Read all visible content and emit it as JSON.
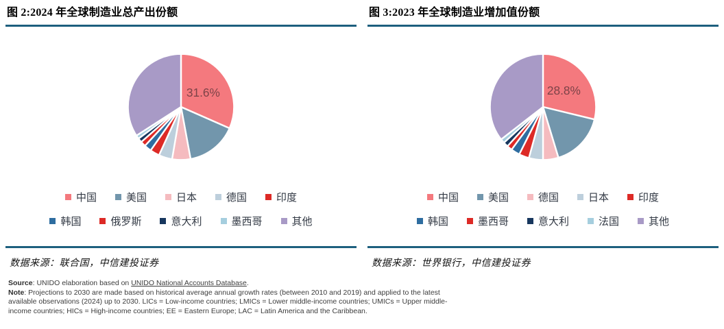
{
  "theme": {
    "rule_color": "#1d5f7e",
    "data_label_color": "#7d4348",
    "legend_text_color": "#333a45",
    "background": "#ffffff"
  },
  "chart_data": [
    {
      "type": "pie",
      "title": "图 2:2024 年全球制造业总产出份额",
      "source_note": "数据来源：联合国，中信建投证券",
      "data_label": {
        "text": "31.6%",
        "slice": "中国",
        "color": "#7d4348"
      },
      "legend_position": "bottom",
      "categories": [
        "中国",
        "美国",
        "日本",
        "德国",
        "印度",
        "韩国",
        "俄罗斯",
        "意大利",
        "墨西哥",
        "其他"
      ],
      "values": [
        31.6,
        15.5,
        5.6,
        4.1,
        2.9,
        2.2,
        1.6,
        1.3,
        1.1,
        34.1
      ],
      "colors": [
        "#f4797e",
        "#7296ac",
        "#f5bbbf",
        "#bdcfdc",
        "#dd2a26",
        "#2e6da0",
        "#dd2a26",
        "#17375e",
        "#a5cede",
        "#a89ac6"
      ]
    },
    {
      "type": "pie",
      "title": "图 3:2023 年全球制造业增加值份额",
      "source_note": "数据来源：世界银行，中信建投证券",
      "data_label": {
        "text": "28.8%",
        "slice": "中国",
        "color": "#7d4348"
      },
      "legend_position": "bottom",
      "categories": [
        "中国",
        "美国",
        "德国",
        "日本",
        "印度",
        "韩国",
        "墨西哥",
        "意大利",
        "法国",
        "其他"
      ],
      "values": [
        28.8,
        16.5,
        4.7,
        4.3,
        3.1,
        2.7,
        1.6,
        1.5,
        1.3,
        35.5
      ],
      "colors": [
        "#f4797e",
        "#7296ac",
        "#f5bbbf",
        "#bdcfdc",
        "#dd2a26",
        "#2e6da0",
        "#dd2a26",
        "#17375e",
        "#a5cede",
        "#a89ac6"
      ]
    }
  ],
  "footnote": {
    "source_label": "Source",
    "source_text": ": UNIDO elaboration based on ",
    "source_link": "UNIDO National Accounts Database",
    "source_tail": ".",
    "note_label": "Note",
    "note_text": ": Projections to 2030 are made based on historical average annual growth rates (between 2010 and 2019) and applied to the latest available observations (2024) up to 2030. LICs = Low-income countries; LMICs = Lower middle-income countries; UMICs = Upper middle-income countries; HICs = High-income countries; EE = Eastern Europe; LAC = Latin America and the Caribbean."
  }
}
